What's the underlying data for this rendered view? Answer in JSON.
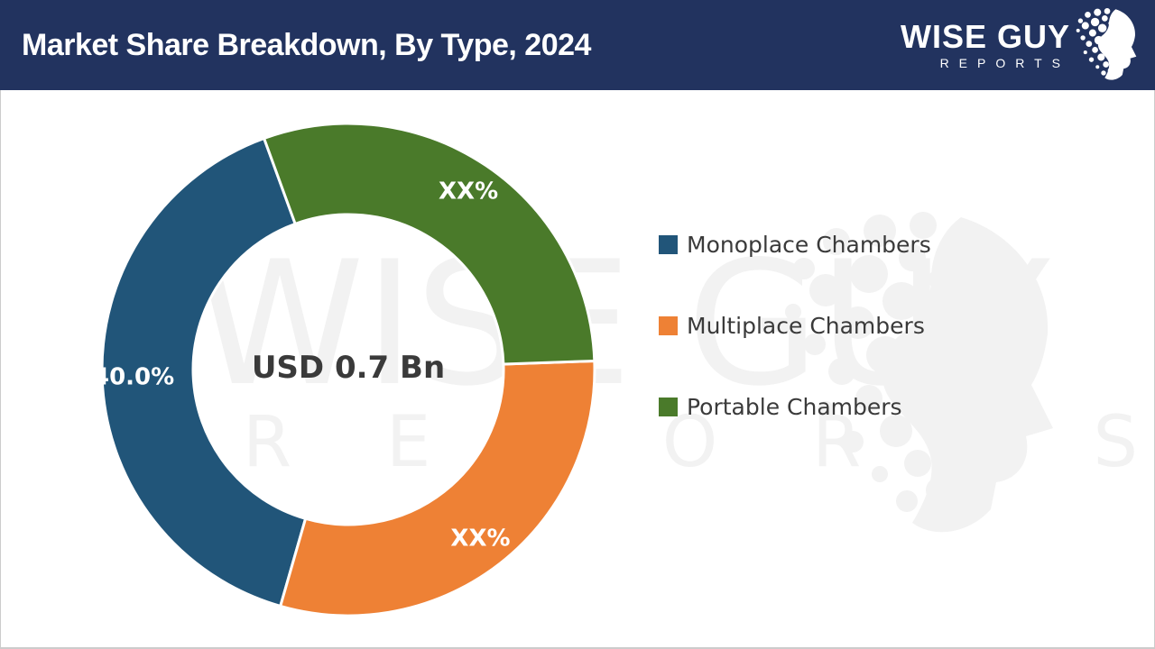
{
  "header": {
    "title": "Market Share Breakdown, By Type, 2024",
    "bg_color": "#22335f",
    "logo": {
      "line1": "WISE GUY",
      "line2": "REPORTS"
    }
  },
  "watermark": {
    "line1": "WISE GUY",
    "line2": "R E P O R T S"
  },
  "chart_data": {
    "type": "pie",
    "subtype": "donut",
    "title": "Market Share Breakdown, By Type, 2024",
    "center_label": "USD 0.7 Bn",
    "start_angle_deg": 110,
    "direction": "counterclockwise",
    "legend_position": "right",
    "series": [
      {
        "name": "Monoplace Chambers",
        "value": 40,
        "label": "40.0%",
        "color": "#215579"
      },
      {
        "name": "Multiplace Chambers",
        "value": 30,
        "label": "XX%",
        "color": "#ee8135"
      },
      {
        "name": "Portable Chambers",
        "value": 30,
        "label": "XX%",
        "color": "#4a7a2a"
      }
    ]
  }
}
